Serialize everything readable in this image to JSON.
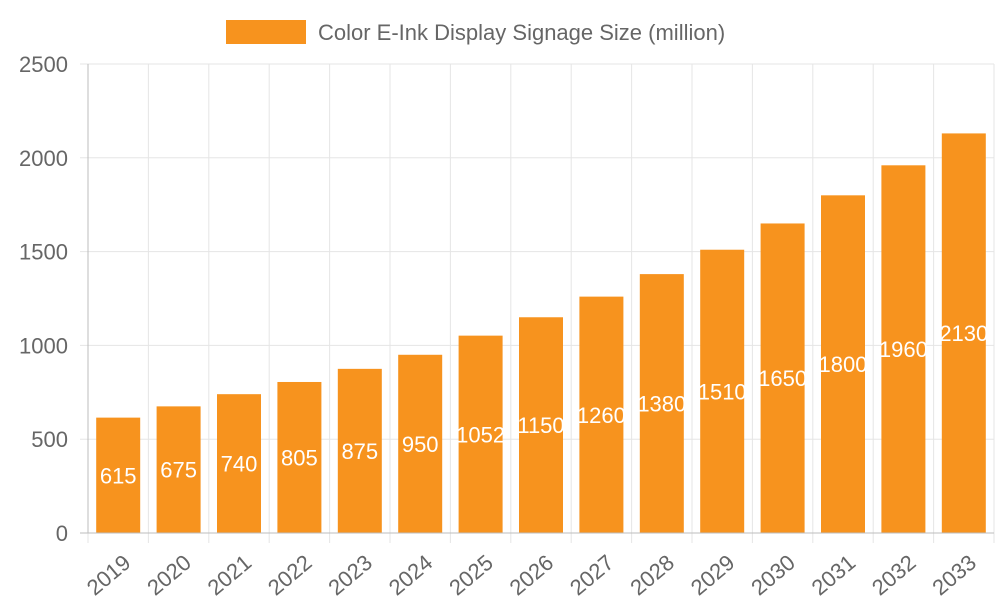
{
  "chart_data": {
    "type": "bar",
    "categories": [
      "2019",
      "2020",
      "2021",
      "2022",
      "2023",
      "2024",
      "2025",
      "2026",
      "2027",
      "2028",
      "2029",
      "2030",
      "2031",
      "2032",
      "2033"
    ],
    "series": [
      {
        "name": "Color E-Ink Display Signage Size (million)",
        "values": [
          615,
          675,
          740,
          805,
          875,
          950,
          1052,
          1150,
          1260,
          1380,
          1510,
          1650,
          1800,
          1960,
          2130
        ],
        "color": "#f7931e"
      }
    ],
    "y_ticks": [
      "0",
      "500",
      "1000",
      "1500",
      "2000",
      "2500"
    ],
    "ylim": [
      0,
      2500
    ],
    "grid": true,
    "legend_position": "top-center",
    "data_labels": true
  }
}
